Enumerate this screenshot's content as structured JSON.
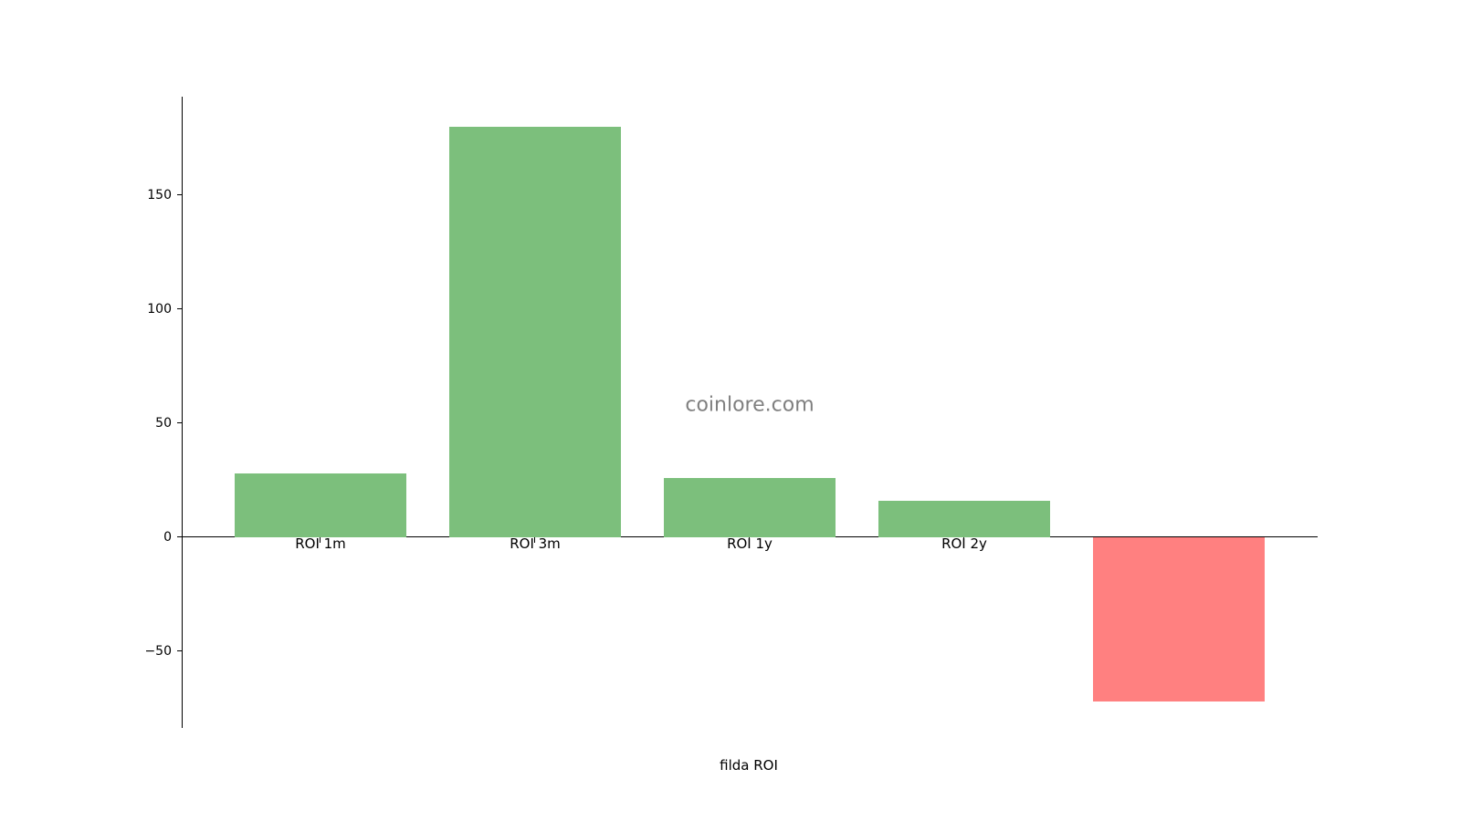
{
  "chart_data": {
    "type": "bar",
    "title": "filda ROI",
    "xlabel": "filda ROI",
    "watermark": "coinlore.com",
    "categories": [
      "ROI 1m",
      "ROI 3m",
      "ROI 1y",
      "ROI 2y",
      ""
    ],
    "values": [
      28,
      180,
      26,
      16,
      -72
    ],
    "yticks": [
      -50,
      0,
      50,
      100,
      150
    ],
    "ytick_labels": [
      "−50",
      "0",
      "50",
      "100",
      "150"
    ],
    "ylim": [
      -84,
      193
    ],
    "grid": false,
    "legend": false,
    "colors": {
      "positive": "#7cbf7c",
      "negative": "#ff8080",
      "axis": "#000000",
      "watermark": "#7f7f7f"
    }
  }
}
